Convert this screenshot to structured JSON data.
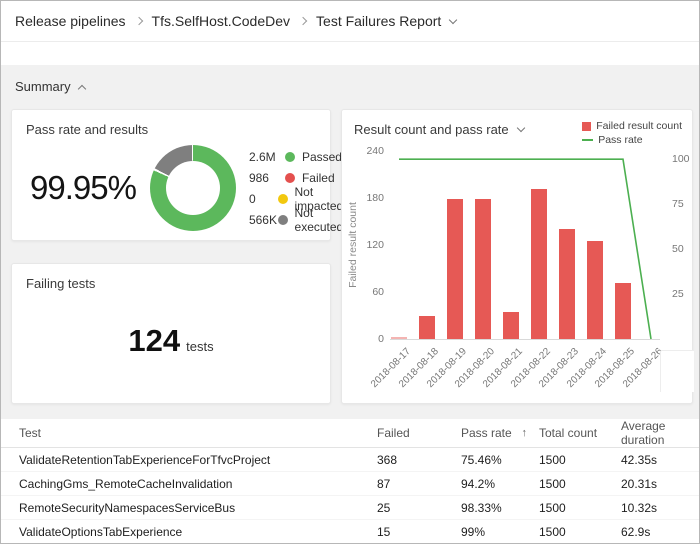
{
  "breadcrumb": {
    "items": [
      "Release pipelines",
      "Tfs.SelfHost.CodeDev",
      "Test Failures Report"
    ]
  },
  "summary": {
    "label": "Summary"
  },
  "failing_tests_card": {
    "title": "Failing tests",
    "value": "124",
    "unit": "tests"
  },
  "chart_data": [
    {
      "type": "pie",
      "title": "Pass rate and results",
      "center_metric": "99.95%",
      "slices": [
        {
          "label": "Passed",
          "display_value": "2.6M",
          "fraction": 0.8212,
          "color": "#5cb85c"
        },
        {
          "label": "Failed",
          "display_value": "986",
          "fraction": 0.0003,
          "color": "#e4504e"
        },
        {
          "label": "Not impacted",
          "display_value": "0",
          "fraction": 0.0,
          "color": "#f2c80f"
        },
        {
          "label": "Not executed",
          "display_value": "566K",
          "fraction": 0.1785,
          "color": "#7f7f7f"
        }
      ]
    },
    {
      "type": "bar",
      "title": "Result count and pass rate",
      "categories": [
        "2018-08-17",
        "2018-08-18",
        "2018-08-19",
        "2018-08-20",
        "2018-08-21",
        "2018-08-22",
        "2018-08-23",
        "2018-08-24",
        "2018-08-25",
        "2018-08-26"
      ],
      "series": [
        {
          "name": "Failed result count",
          "type": "bar",
          "axis": "left",
          "color": "#e65955",
          "values": [
            2,
            29,
            179,
            179,
            34,
            191,
            141,
            125,
            72,
            0
          ]
        },
        {
          "name": "Pass rate",
          "type": "line",
          "axis": "right",
          "color": "#4caf50",
          "values": [
            99.9,
            99.9,
            99.9,
            99.9,
            99.9,
            99.9,
            99.9,
            99.9,
            99.9,
            0
          ]
        }
      ],
      "left_axis": {
        "label": "Failed result count",
        "ticks": [
          0,
          60,
          120,
          180,
          240
        ],
        "max": 240
      },
      "right_axis": {
        "ticks": [
          25,
          50,
          75,
          100
        ],
        "max": 100
      },
      "legend_position": "top-right"
    }
  ],
  "table": {
    "headers": [
      "Test",
      "Failed",
      "Pass rate",
      "Total count",
      "Average duration"
    ],
    "sort": {
      "column": "Pass rate",
      "icon": "↑"
    },
    "rows": [
      [
        "ValidateRetentionTabExperienceForTfvcProject",
        "368",
        "75.46%",
        "1500",
        "42.35s"
      ],
      [
        "CachingGms_RemoteCacheInvalidation",
        "87",
        "94.2%",
        "1500",
        "20.31s"
      ],
      [
        "RemoteSecurityNamespacesServiceBus",
        "25",
        "98.33%",
        "1500",
        "10.32s"
      ],
      [
        "ValidateOptionsTabExperience",
        "15",
        "99%",
        "1500",
        "62.9s"
      ]
    ]
  }
}
